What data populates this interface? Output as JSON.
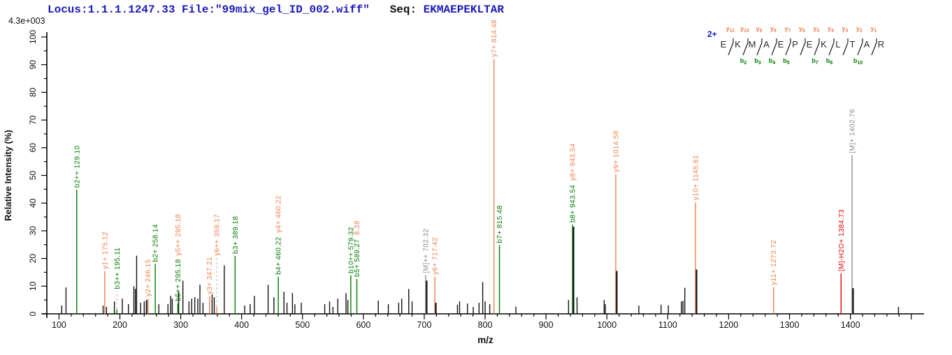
{
  "header": {
    "locus_file": "Locus:1.1.1.1247.33 File:\"99mix_gel_ID_002.wiff\"",
    "seq_label": "Seq:",
    "sequence": "EKMAEPEKLTAR",
    "max_intensity": "4.3e+003"
  },
  "ladder": {
    "charge": "2+",
    "residues": [
      "E",
      "K",
      "M",
      "A",
      "E",
      "P",
      "E",
      "K",
      "L",
      "T",
      "A",
      "R"
    ],
    "gaps": [
      {
        "y": "y11",
        "b": null
      },
      {
        "y": "y10",
        "b": "b2"
      },
      {
        "y": "y9",
        "b": "b3"
      },
      {
        "y": "y8",
        "b": "b4"
      },
      {
        "y": "y7",
        "b": "b5"
      },
      {
        "y": "y6",
        "b": null
      },
      {
        "y": "y5",
        "b": "b7"
      },
      {
        "y": "y4",
        "b": "b8"
      },
      {
        "y": "y3",
        "b": null
      },
      {
        "y": "y2",
        "b": "b10"
      },
      {
        "y": "y1",
        "b": null
      }
    ]
  },
  "colors": {
    "b": "#007c00",
    "y": "#f0804f",
    "M": "#8c8c8c",
    "M-H2O": "#e60000",
    "peak_black": "#111111",
    "dashed_pointer": "#b4b4b4",
    "axis": "#000000",
    "header_blue": "#1a1ab8"
  },
  "chart_data": {
    "type": "bar",
    "subtype": "ms2-fragment-mass-spectrum",
    "title": "",
    "xlabel": "m/z",
    "ylabel": "Relative  Intensity (%)",
    "xlim": [
      80,
      1521
    ],
    "ylim": [
      0,
      100
    ],
    "x_major_tick_step": 100,
    "x_minor_tick_step": 20,
    "x_major_labels": [
      100,
      200,
      300,
      400,
      500,
      600,
      700,
      800,
      900,
      1000,
      1100,
      1200,
      1300,
      1400
    ],
    "y_major_tick_step": 10,
    "y_minor_tick_step": 5,
    "y_major_labels": [
      0,
      10,
      20,
      30,
      40,
      50,
      60,
      70,
      80,
      90,
      100
    ],
    "annotated_peaks": [
      {
        "mz": 129.1,
        "label": "b2++ 129.10",
        "ion": "b",
        "labelStart": 44.8
      },
      {
        "mz": 175.12,
        "label": "y1+ 175.12",
        "ion": "y",
        "labelStart": 15.4
      },
      {
        "mz": 195.11,
        "label": "b3++ 195.11",
        "ion": "b",
        "labelStart": 8.2,
        "pointer": "dashed",
        "peak": 1.5
      },
      {
        "mz": 246.15,
        "label": "y2+ 246.15",
        "ion": "y",
        "labelStart": 5.5
      },
      {
        "mz": 258.14,
        "label": "b2+ 258.14",
        "ion": "b",
        "labelStart": 18.0
      },
      {
        "mz": 295.18,
        "label": "b5++ 295.18",
        "ion": "b",
        "labelStart": 3.8,
        "label2": "y5++ 295.18",
        "label2_ion": "y"
      },
      {
        "mz": 347.21,
        "label": "y3+ 347.21",
        "ion": "y",
        "labelStart": 6.3
      },
      {
        "mz": 359.17,
        "label": "y6++ 359.17",
        "ion": "y",
        "labelStart": 20.2,
        "pointer": "dashed",
        "peak": 2.5
      },
      {
        "mz": 389.18,
        "label": "b3+ 389.18",
        "ion": "b",
        "labelStart": 20.9
      },
      {
        "mz": 460.22,
        "label": "b4+ 460.22",
        "ion": "b",
        "labelStart": 13.4,
        "label2": "y4+ 460.22",
        "label2_ion": "y"
      },
      {
        "mz": 579.32,
        "label": "b10++ 579.32",
        "ion": "b",
        "labelStart": 13.9
      },
      {
        "mz": 589.27,
        "label": "b5+ 589.27",
        "ion": "b",
        "labelStart": 12.6,
        "label2": "8.38",
        "label2_ion": "y"
      },
      {
        "mz": 702.32,
        "label": "[M]++ 702.32",
        "ion": "M",
        "labelStart": 14.0,
        "blackBar": 12
      },
      {
        "mz": 717.42,
        "label": "y6+ 717.42",
        "ion": "y",
        "labelStart": 13.4,
        "blackBar": 4
      },
      {
        "mz": 814.48,
        "label": "y7+ 814.48",
        "ion": "y",
        "labelStart": 92
      },
      {
        "mz": 815.48,
        "label": "b7+ 815.48",
        "ion": "b",
        "labelStart": 24.8,
        "dx": 7
      },
      {
        "mz": 943.54,
        "label": "b8+ 943.54",
        "ion": "b",
        "labelStart": 32.2,
        "blackBar": 31.5,
        "label2": "y8+ 943.54",
        "label2_ion": "y"
      },
      {
        "mz": 1014.58,
        "label": "y9+ 1014.58",
        "ion": "y",
        "labelStart": 50.4,
        "blackBar": 15.5
      },
      {
        "mz": 1145.61,
        "label": "y10+ 1145.61",
        "ion": "y",
        "labelStart": 40.3,
        "blackBar": 16
      },
      {
        "mz": 1273.72,
        "label": "y11+ 1273.72",
        "ion": "y",
        "labelStart": 9.6
      },
      {
        "mz": 1384.73,
        "label": "[M]-H2O+ 1384.73",
        "ion": "M-H2O",
        "labelStart": 14.6
      },
      {
        "mz": 1402.76,
        "label": "[M]+ 1402.76",
        "ion": "M",
        "labelStart": 57.3,
        "blackBar": 9.3
      }
    ],
    "unlabeled_peaks": [
      [
        104.5,
        3
      ],
      [
        111.5,
        9.5
      ],
      [
        172.5,
        3
      ],
      [
        178,
        2.5
      ],
      [
        191,
        4.5
      ],
      [
        204,
        5.5
      ],
      [
        214,
        3.5
      ],
      [
        223,
        10
      ],
      [
        225.5,
        9
      ],
      [
        227.5,
        21
      ],
      [
        234,
        4
      ],
      [
        240,
        4.5
      ],
      [
        243.5,
        5
      ],
      [
        245.5,
        5
      ],
      [
        264,
        3.5
      ],
      [
        279,
        3.5
      ],
      [
        283.5,
        6.5
      ],
      [
        286,
        5.5
      ],
      [
        296.5,
        8
      ],
      [
        303.5,
        12
      ],
      [
        313.5,
        4.5
      ],
      [
        318,
        5.5
      ],
      [
        323,
        6
      ],
      [
        328,
        5.5
      ],
      [
        331.5,
        10.5
      ],
      [
        336.5,
        4
      ],
      [
        351.5,
        7
      ],
      [
        355,
        6
      ],
      [
        371.5,
        17.5
      ],
      [
        405,
        3
      ],
      [
        414,
        3.5
      ],
      [
        421,
        6.5
      ],
      [
        443.5,
        10.5
      ],
      [
        453,
        6
      ],
      [
        469.5,
        8
      ],
      [
        474.5,
        4
      ],
      [
        483.5,
        7.5
      ],
      [
        487.5,
        3.5
      ],
      [
        498,
        4
      ],
      [
        536.5,
        3.5
      ],
      [
        544.5,
        4.5
      ],
      [
        550,
        2.5
      ],
      [
        558,
        5.5
      ],
      [
        571.5,
        7.5
      ],
      [
        574.5,
        5
      ],
      [
        624.5,
        4.8
      ],
      [
        641,
        3.5
      ],
      [
        658,
        4
      ],
      [
        663,
        5.5
      ],
      [
        674.5,
        9
      ],
      [
        680,
        4.5
      ],
      [
        754.5,
        3.3
      ],
      [
        758,
        4.5
      ],
      [
        771,
        3.7
      ],
      [
        780.5,
        2.5
      ],
      [
        790,
        4
      ],
      [
        796,
        11.5
      ],
      [
        800,
        4.5
      ],
      [
        807.5,
        3.5
      ],
      [
        850.5,
        2.6
      ],
      [
        937,
        5
      ],
      [
        951,
        6
      ],
      [
        995.5,
        5
      ],
      [
        997.5,
        3.5
      ],
      [
        1052.5,
        3
      ],
      [
        1089,
        3.3
      ],
      [
        1101,
        3.1
      ],
      [
        1122.5,
        4.5
      ],
      [
        1125,
        4.7
      ],
      [
        1128,
        9.4
      ],
      [
        1479,
        2.5
      ]
    ]
  }
}
